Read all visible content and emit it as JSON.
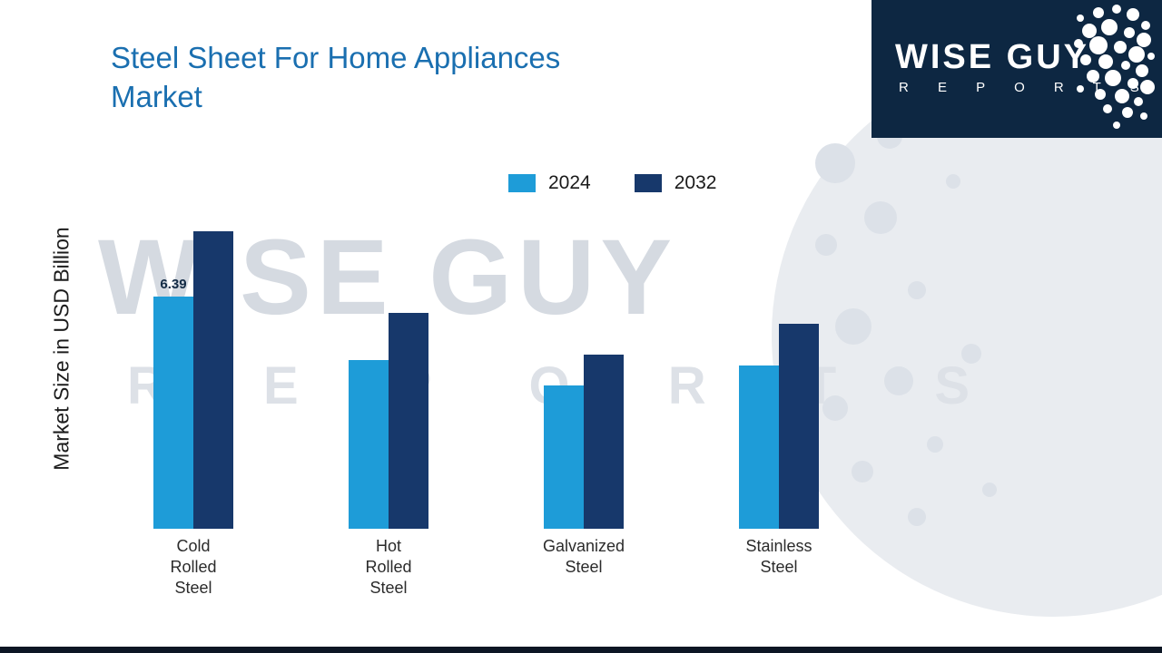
{
  "header": {
    "title_line1": "Steel Sheet For Home Appliances",
    "title_line2": "Market"
  },
  "logo": {
    "name_line": "WISE GUY",
    "reports_line": "R E P O R T S"
  },
  "watermark": {
    "line1": "WISE GUY",
    "line2": "R E P O R T S"
  },
  "colors": {
    "title_blue": "#1a6fb0",
    "series_2024": "#1e9cd8",
    "series_2032": "#17386b",
    "logo_banner_navy": "#0d2742",
    "bottom_bar": "#0c1624",
    "watermark_gray": "#d5dae1",
    "face_circle_gray": "#e9ecf0"
  },
  "chart_data": {
    "type": "bar",
    "title": "Steel Sheet For Home Appliances Market",
    "ylabel": "Market Size in USD Billion",
    "xlabel": "",
    "unit": "USD Billion",
    "categories": [
      "Cold Rolled Steel",
      "Hot Rolled Steel",
      "Galvanized Steel",
      "Stainless Steel"
    ],
    "category_lines": [
      [
        "Cold",
        "Rolled",
        "Steel"
      ],
      [
        "Hot",
        "Rolled",
        "Steel"
      ],
      [
        "Galvanized",
        "Steel"
      ],
      [
        "Stainless",
        "Steel"
      ]
    ],
    "series": [
      {
        "name": "2024",
        "color": "#1e9cd8",
        "values": [
          6.39,
          4.65,
          3.95,
          4.5
        ]
      },
      {
        "name": "2032",
        "color": "#17386b",
        "values": [
          8.2,
          5.95,
          4.8,
          5.65
        ]
      }
    ],
    "data_labels_2024": [
      "6.39",
      null,
      null,
      null
    ],
    "ylim": [
      0,
      9
    ],
    "grid": false,
    "legend_position": "top-center"
  }
}
